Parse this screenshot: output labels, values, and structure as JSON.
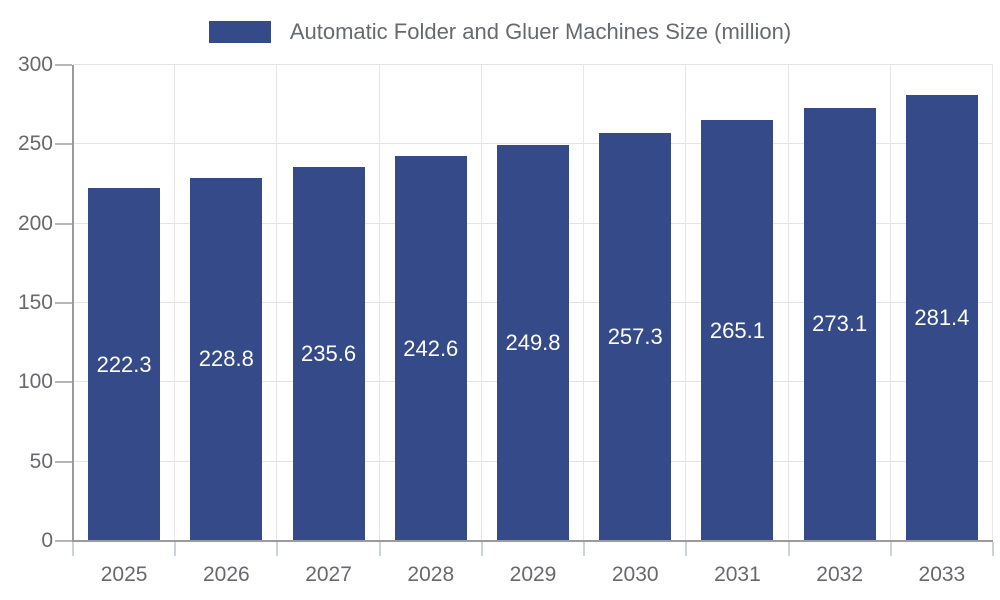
{
  "chart_data": {
    "type": "bar",
    "title": "Automatic Folder and Gluer Machines Size (million)",
    "categories": [
      "2025",
      "2026",
      "2027",
      "2028",
      "2029",
      "2030",
      "2031",
      "2032",
      "2033"
    ],
    "series": [
      {
        "name": "Automatic Folder and Gluer Machines Size (million)",
        "values": [
          222.3,
          228.8,
          235.6,
          242.6,
          249.8,
          257.3,
          265.1,
          273.1,
          281.4
        ]
      }
    ],
    "bar_labels": [
      "222.3",
      "228.8",
      "235.6",
      "242.6",
      "249.8",
      "257.3",
      "265.1",
      "273.1",
      "281.4"
    ],
    "xlabel": "",
    "ylabel": "",
    "ylim": [
      0,
      300
    ],
    "yticks": [
      0,
      50,
      100,
      150,
      200,
      250,
      300
    ],
    "grid": true,
    "legend_position": "top-center",
    "colors": {
      "bar": "#354a89",
      "bar_label_text": "#ffffff",
      "axis_text": "#67696e",
      "legend_text": "#666a6e"
    }
  }
}
